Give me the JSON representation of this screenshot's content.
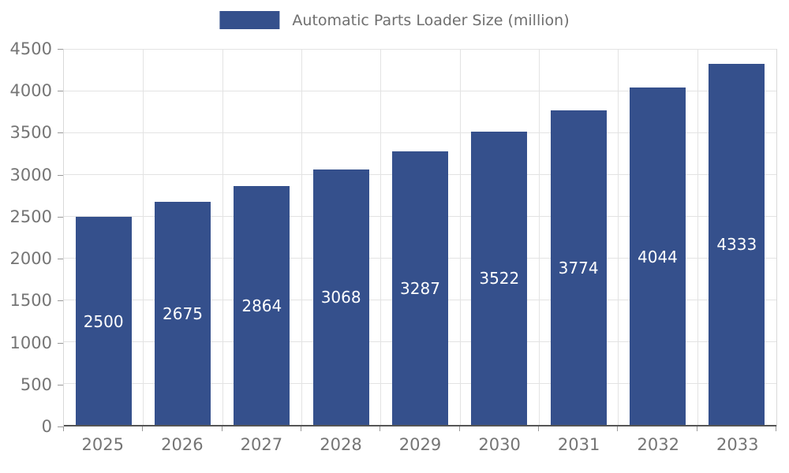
{
  "legend": {
    "label": "Automatic Parts Loader Size (million)"
  },
  "colors": {
    "bar": "#35508C",
    "grid": "#e3e3e3",
    "axis_line": "#555555",
    "tick": "#999999",
    "tick_label": "#757575",
    "legend_text": "#6f6f6f",
    "value_label": "#ffffff",
    "plot_border": "#d9d9d9"
  },
  "chart_data": {
    "type": "bar",
    "title": "Automatic Parts Loader Size (million)",
    "categories": [
      "2025",
      "2026",
      "2027",
      "2028",
      "2029",
      "2030",
      "2031",
      "2032",
      "2033"
    ],
    "values": [
      2500,
      2675,
      2864,
      3068,
      3287,
      3522,
      3774,
      4044,
      4333
    ],
    "xlabel": "",
    "ylabel": "",
    "ylim": [
      0,
      4500
    ],
    "ytick_step": 500,
    "ytick_labels": [
      "0",
      "500",
      "1000",
      "1500",
      "2000",
      "2500",
      "3000",
      "3500",
      "4000",
      "4500"
    ],
    "grid": true,
    "legend_position": "top",
    "value_labels_shown": true,
    "value_label_position": "inside-center"
  }
}
